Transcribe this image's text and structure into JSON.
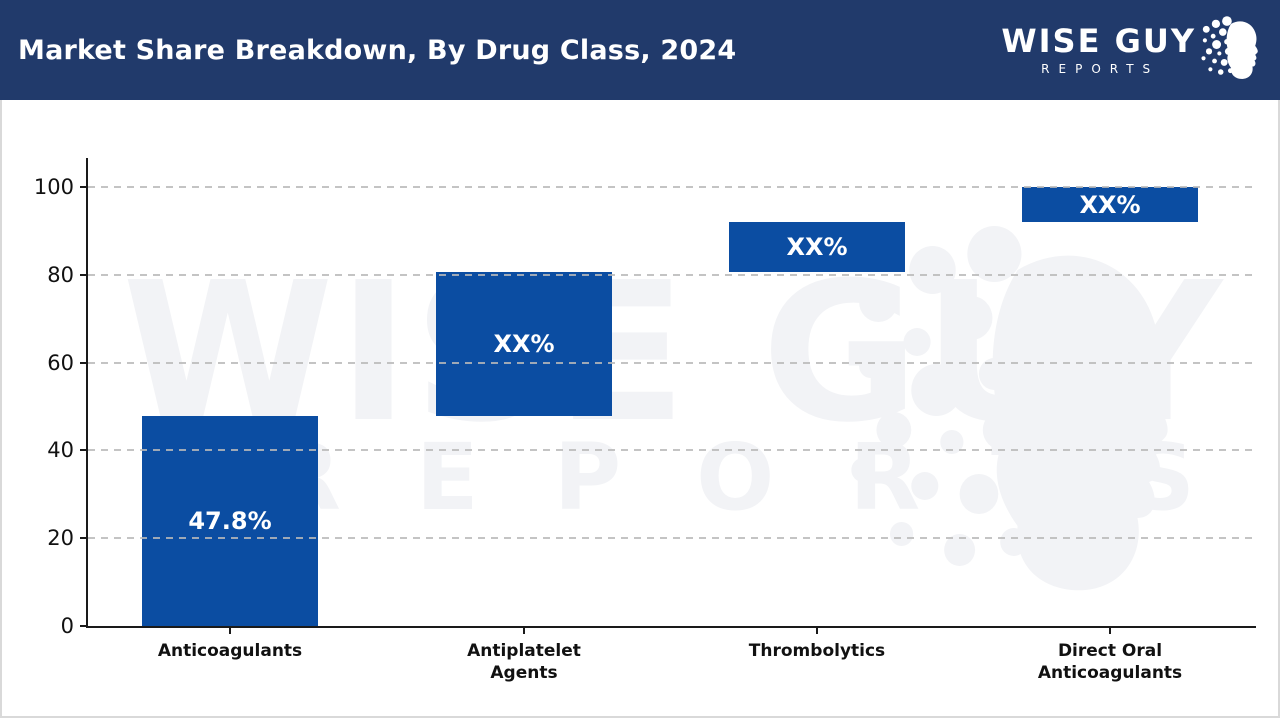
{
  "header": {
    "title": "Market Share Breakdown, By Drug Class, 2024",
    "logo": {
      "line1": "WISE GUY",
      "line2": "REPORTS"
    }
  },
  "watermark": {
    "line1": "WISE GUY",
    "line2": "REPORTS"
  },
  "colors": {
    "header_navy": "#213a6b",
    "bar_blue": "#0b4da2",
    "bar_label_white": "#ffffff",
    "gridline_gray": "#bebebe",
    "watermark_gray": "#f2f3f6"
  },
  "chart_data": {
    "type": "bar",
    "subtype": "waterfall",
    "title": "Market Share Breakdown, By Drug Class, 2024",
    "xlabel": "",
    "ylabel": "",
    "ylim": [
      0,
      100
    ],
    "yticks": [
      0,
      20,
      40,
      60,
      80,
      100
    ],
    "grid": "horizontal dashed",
    "legend": "none",
    "bar_color": "#0b4da2",
    "label_color": "#ffffff",
    "categories": [
      "Anticoagulants",
      "Antiplatelet Agents",
      "Thrombolytics",
      "Direct Oral Anticoagulants"
    ],
    "category_lines": [
      [
        "Anticoagulants"
      ],
      [
        "Antiplatelet",
        "Agents"
      ],
      [
        "Thrombolytics"
      ],
      [
        "Direct Oral",
        "Anticoagulants"
      ]
    ],
    "segments": [
      {
        "category": "Anticoagulants",
        "start": 0,
        "end": 47.8,
        "value": 47.8,
        "label": "47.8%",
        "masked": false
      },
      {
        "category": "Antiplatelet Agents",
        "start": 47.8,
        "end": 80.6,
        "value": 32.8,
        "label": "XX%",
        "masked": true
      },
      {
        "category": "Thrombolytics",
        "start": 80.6,
        "end": 92,
        "value": 11.4,
        "label": "XX%",
        "masked": true
      },
      {
        "category": "Direct Oral Anticoagulants",
        "start": 92,
        "end": 100,
        "value": 8,
        "label": "XX%",
        "masked": true
      }
    ]
  }
}
